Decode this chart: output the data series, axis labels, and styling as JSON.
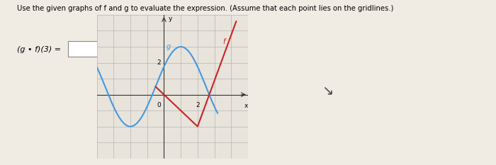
{
  "title_text": "Use the given graphs of f and g to evaluate the expression. (Assume that each point lies on the gridlines.)",
  "expression_label": "(g • f)(3) =",
  "bg_color": "#e8e0d0",
  "main_bg": "#f0ece4",
  "left_strip_color": "#d4b84a",
  "graph_bg": "#e8e4dc",
  "grid_color": "#aaaaaa",
  "axis_color": "#333333",
  "blue_color": "#4499dd",
  "red_color": "#cc2222",
  "g_label": "g",
  "f_label": "f",
  "x_min": -4,
  "x_max": 5,
  "y_min": -4,
  "y_max": 5,
  "curve_linewidth": 1.5,
  "title_fontsize": 7.2,
  "expr_fontsize": 8.0,
  "tick_fontsize": 6.5
}
